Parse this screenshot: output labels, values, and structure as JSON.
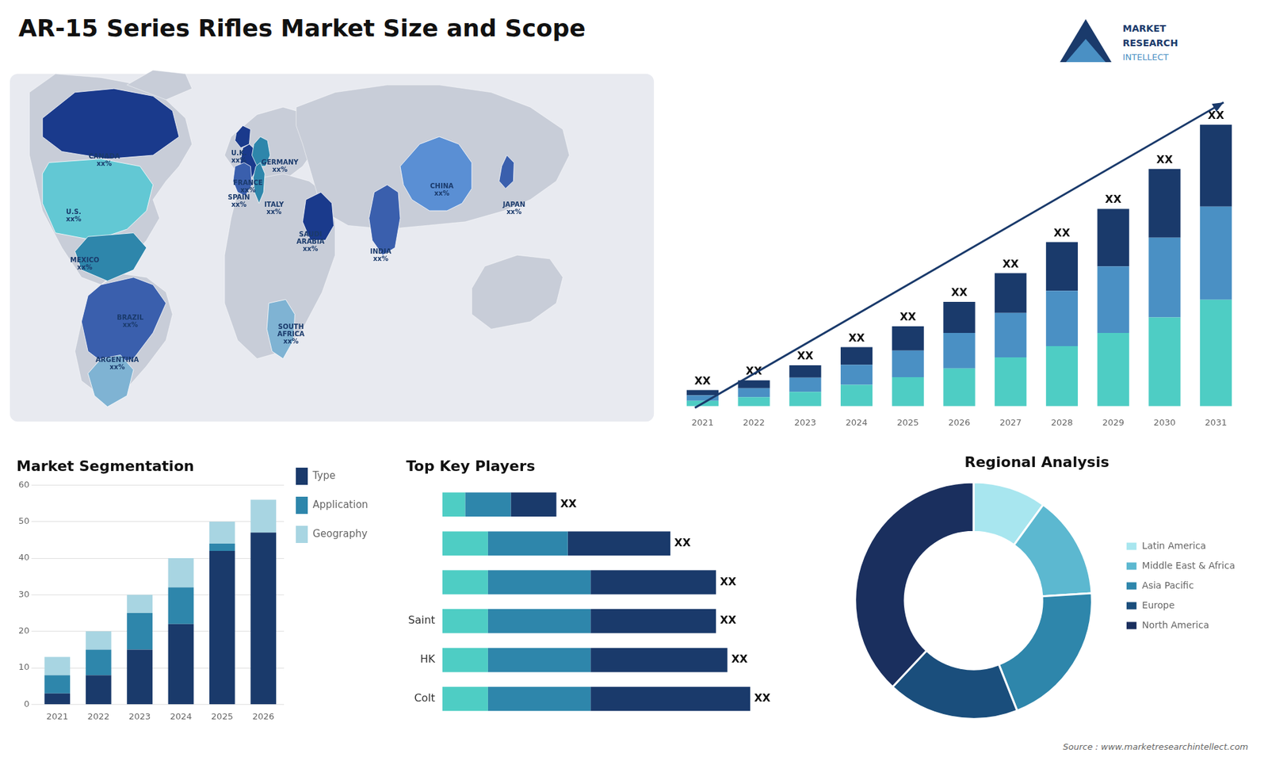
{
  "title": "AR-15 Series Rifles Market Size and Scope",
  "annotations": [
    "MARKET",
    "RESEARCH",
    "INTELLECT",
    "Source : www.marketresearchintellect.com"
  ],
  "chart_data": [
    {
      "type": "map",
      "categories": [
        "CANADA\nxx%",
        "U.S.\nxx%",
        "MEXICO\nxx%",
        "BRAZIL\nxx%",
        "ARGENTINA\nxx%",
        "U.K.\nxx%",
        "FRANCE\nxx%",
        "GERMANY\nxx%",
        "SPAIN\nxx%",
        "ITALY\nxx%",
        "SAUDI\nARABIA\nxx%",
        "INDIA\nxx%",
        "CHINA\nxx%",
        "JAPAN\nxx%",
        "SOUTH\nAFRICA\nxx%"
      ],
      "colors": [
        "#1a3a8c",
        "#62c8d4",
        "#2e86ab",
        "#3a5fad",
        "#7fb3d3",
        "#1a3a8c",
        "#1a3a8c",
        "#2e86ab",
        "#3a5fad",
        "#2e86ab",
        "#1a3a8c",
        "#3a5fad",
        "#5a8fd4",
        "#3a5fad",
        "#7fb3d3"
      ]
    },
    {
      "type": "bar",
      "stacked": true,
      "categories": [
        "2021",
        "2022",
        "2023",
        "2024",
        "2025",
        "2026",
        "2027",
        "2028",
        "2029",
        "2030",
        "2031"
      ],
      "series": [
        {
          "color": "#4ecdc4",
          "values": [
            1.2,
            2.0,
            3.2,
            4.8,
            6.5,
            8.5,
            11.0,
            13.5,
            16.5,
            20.0,
            24.0
          ]
        },
        {
          "color": "#4a90c4",
          "values": [
            1.2,
            2.0,
            3.2,
            4.5,
            6.0,
            8.0,
            10.0,
            12.5,
            15.0,
            18.0,
            21.0
          ]
        },
        {
          "color": "#1a3a6b",
          "values": [
            1.2,
            1.8,
            2.8,
            4.0,
            5.5,
            7.0,
            9.0,
            11.0,
            13.0,
            15.5,
            18.5
          ],
          "value_labels": [
            "XX",
            "XX",
            "XX",
            "XX",
            "XX",
            "XX",
            "XX",
            "XX",
            "XX",
            "XX",
            "XX"
          ]
        }
      ],
      "ylim": [
        -1,
        71.5
      ],
      "tick_labels": "x",
      "grid": false
    },
    {
      "type": "bar",
      "stacked": true,
      "title": "Market Segmentation",
      "categories": [
        "2021",
        "2022",
        "2023",
        "2024",
        "2025",
        "2026"
      ],
      "series": [
        {
          "name": "Type",
          "color": "#1a3a6b",
          "values": [
            3,
            8,
            15,
            22,
            42,
            47
          ]
        },
        {
          "name": "Application",
          "color": "#2e86ab",
          "values": [
            5,
            7,
            10,
            10,
            2,
            0
          ]
        },
        {
          "name": "Geography",
          "color": "#a8d5e2",
          "values": [
            5,
            5,
            5,
            8,
            6,
            9
          ]
        }
      ],
      "ylim": [
        0,
        60
      ],
      "yticks": [
        0,
        10,
        20,
        30,
        40,
        50,
        60
      ],
      "grid": true,
      "legend": "right"
    },
    {
      "type": "bar",
      "stacked": true,
      "orientation": "horizontal",
      "title": "Top Key Players",
      "categories": [
        "Colt",
        "HK",
        "Saint",
        null,
        null,
        null
      ],
      "series": [
        {
          "color": "#4ecdc4",
          "values": [
            4,
            4,
            4,
            4,
            4,
            2
          ]
        },
        {
          "color": "#2e86ab",
          "values": [
            9,
            9,
            9,
            9,
            7,
            4
          ]
        },
        {
          "color": "#1a3a6b",
          "values": [
            14,
            12,
            11,
            11,
            9,
            4
          ],
          "value_labels": [
            "XX",
            "XX",
            "XX",
            "XX",
            "XX",
            "XX"
          ]
        }
      ],
      "xlim": [
        0,
        31
      ],
      "tick_labels": "y",
      "grid": false
    },
    {
      "type": "doughnut",
      "title": "Regional Analysis",
      "categories": [
        "Latin America",
        "Middle East &\nAfrica",
        "Asia Pacific",
        "Europe",
        "North America"
      ],
      "values": [
        10,
        14,
        20,
        18,
        38
      ],
      "colors": [
        "#a8e6ef",
        "#5cb8d0",
        "#2e86ab",
        "#1a4e7c",
        "#1a2f5e"
      ],
      "legend": "right"
    }
  ]
}
